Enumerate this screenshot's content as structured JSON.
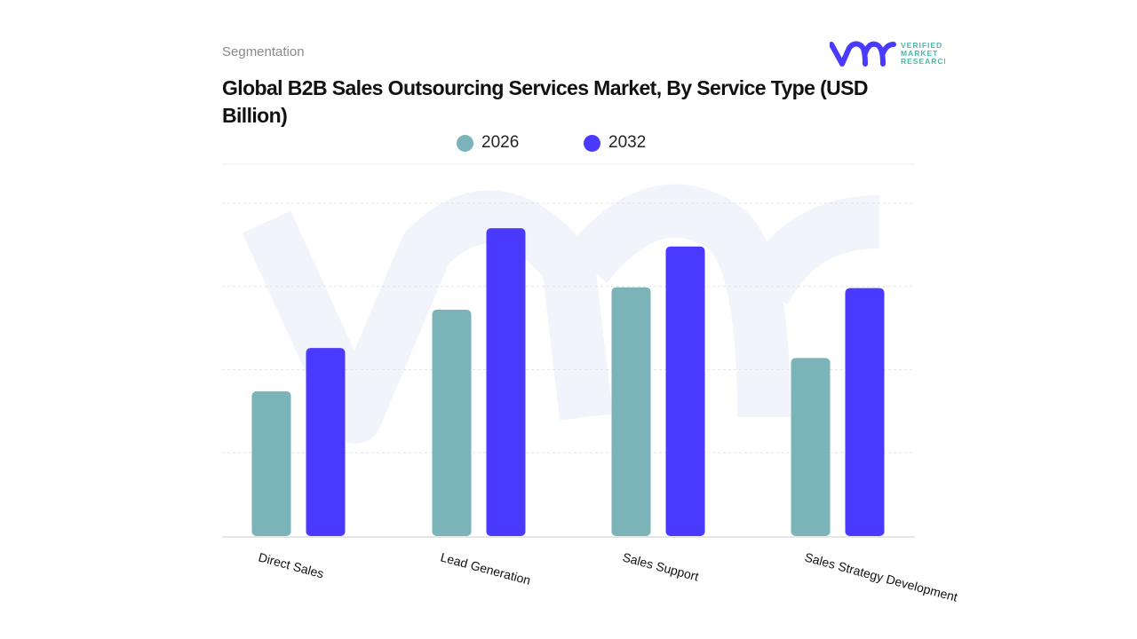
{
  "header": {
    "segment_label": "Segmentation",
    "logo_text": "VERIFIED MARKET RESEARCH"
  },
  "colors": {
    "series_2026": "#7ab4b8",
    "series_2032": "#4a3aff",
    "watermark": "#f2f4fb",
    "logo_text": "#4ab8a8"
  },
  "chart_data": {
    "type": "bar",
    "title": "Global B2B Sales Outsourcing Services Market, By Service Type (USD Billion)",
    "categories": [
      "Direct Sales",
      "Lead Generation",
      "Sales Support",
      "Sales Strategy Development"
    ],
    "series": [
      {
        "name": "2026",
        "values": [
          1.74,
          2.72,
          2.99,
          2.14
        ]
      },
      {
        "name": "2032",
        "values": [
          2.26,
          3.7,
          3.48,
          2.98
        ]
      }
    ],
    "ylim": [
      0,
      4
    ],
    "grid": true,
    "y_tick_labels_shown": false,
    "legend_placement": "top-center",
    "xlabel": "",
    "ylabel": ""
  }
}
